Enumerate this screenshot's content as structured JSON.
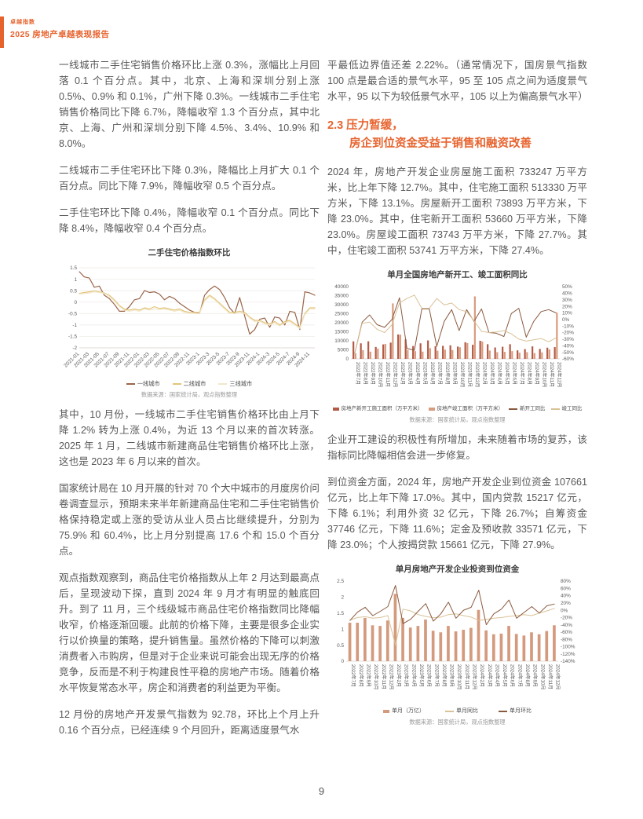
{
  "header": {
    "brand_small": "卓越指数",
    "brand_title": "2025 房地产卓越表现报告"
  },
  "page_number": "9",
  "left": {
    "p1": "一线城市二手住宅销售价格环比上涨 0.3%，涨幅比上月回落 0.1 个百分点。其中，北京、上海和深圳分别上涨 0.5%、0.9% 和 0.1%，广州下降 0.3%。一线城市二手住宅销售价格同比下降 6.7%，降幅收窄 1.3 个百分点，其中北京、上海、广州和深圳分别下降 4.5%、3.4%、10.9% 和 8.0%。",
    "p2": "二线城市二手住宅环比下降 0.3%，降幅比上月扩大 0.1 个百分点。同比下降 7.9%，降幅收窄 0.5 个百分点。",
    "p3": "二手住宅环比下降 0.4%，降幅收窄 0.1 个百分点。同比下降 8.4%，降幅收窄 0.4 个百分点。",
    "p4": "其中，10 月份，一线城市二手住宅销售价格环比由上月下降 1.2% 转为上涨 0.4%，为近 13 个月以来的首次转涨。2025 年 1 月，二线城市新建商品住宅销售价格环比上涨，这也是 2023 年 6 月以来的首次。",
    "p5": "国家统计局在 10 月开展的针对 70 个大中城市的月度房价问卷调查显示，预期未来半年新建商品住宅和二手住宅销售价格保持稳定或上涨的受访从业人员占比继续提升，分别为 75.9% 和 60.4%，比上月分别提高 17.6 个和 15.0 个百分点。",
    "p6": "观点指数观察到，商品住宅价格指数从上年 2 月达到最高点后，呈现波动下探，直到 2024 年 9 月才有明显的触底回升。到了 11 月，三个线级城市商品住宅价格指数同比降幅收窄，价格逐渐回暖。此前的价格下降，主要是很多企业实行以价换量的策略，提升销售量。虽然价格的下降可以刺激消费者入市购房，但是对于企业来说可能会出现无序的价格竞争，反而是不利于构建良性平稳的房地产市场。随着价格水平恢复常态水平，房企和消费者的利益更为平衡。",
    "p7": "12 月份的房地产开发景气指数为 92.78，环比上个月上升 0.16 个百分点，已经连续 9 个月回升，距离适度景气水"
  },
  "right": {
    "p1": "平最低边界值还差 2.22%。（通常情况下，国房景气指数 100 点是最合适的景气水平，95 至 105 点之间为适度景气水平，95 以下为较低景气水平，105 以上为偏高景气水平）",
    "heading_line1": "2.3 压力暂缓，",
    "heading_line2": "房企到位资金受益于销售和融资改善",
    "p2": "2024 年，房地产开发企业房屋施工面积 733247 万平方米，比上年下降 12.7%。其中，住宅施工面积 513330 万平方米，下降 13.1%。房屋新开工面积 73893 万平方米，下降 23.0%。其中，住宅新开工面积 53660 万平方米，下降 23.0%。房屋竣工面积 73743 万平方米，下降 27.7%。其中，住宅竣工面积 53741 万平方米，下降 27.4%。",
    "p3": "企业开工建设的积极性有所增加，未来随着市场的复苏，该指标同比降幅相信会进一步修复。",
    "p4": "到位资金方面，2024 年，房地产开发企业到位资金 107661 亿元，比上年下降 17.0%。其中，国内贷款 15217 亿元，下降 6.1%；利用外资 32 亿元，下降 26.7%；自筹资金 37746 亿元，下降 11.6%；定金及预收款 33571 亿元，下降 23.0%；个人按揭贷款 15661 亿元，下降 27.9%。"
  },
  "accent_color": "#e7632e",
  "chart_data": [
    {
      "type": "line",
      "title": "二手住宅价格指数环比",
      "source": "数据来源：国家统计局，观点指数整理",
      "ylim": [
        -2,
        1.5
      ],
      "yticks": [
        "1.5",
        "1",
        "0.5",
        "0",
        "-0.5",
        "-1",
        "-1.5",
        "-2"
      ],
      "legend_position": "bottom",
      "grid": true,
      "categories": [
        "2021-01",
        "2021-02",
        "2021-03",
        "2021-04",
        "2021-05",
        "2021-06",
        "2021-07",
        "2021-08",
        "2021-09",
        "2021-10",
        "2021-11",
        "2021-12",
        "2022-01",
        "2022-02",
        "2022-03",
        "2022-04",
        "2022-05",
        "2022-06",
        "2022-07",
        "2022-08",
        "2022-09",
        "2022-10",
        "2022-11",
        "2022-12",
        "2023-1",
        "2023-2",
        "2023-3",
        "2023-4",
        "2023-5",
        "2023-6",
        "2023-7",
        "2023-8",
        "2023-9",
        "2023-10",
        "2023-11",
        "2023-12",
        "2024-1",
        "2024-2",
        "2024-3",
        "2024-4",
        "2024-5",
        "2024-6",
        "2024-7",
        "2024-8",
        "2024-9",
        "2024-10",
        "2024-11",
        "2024-12"
      ],
      "series": [
        {
          "name": "一线城市",
          "type": "line",
          "axis": "left",
          "color": "#99654a",
          "values": [
            1.33,
            1.1,
            1.05,
            0.65,
            0.7,
            0.3,
            0.15,
            -0.1,
            -0.4,
            -0.4,
            -0.2,
            0.1,
            0.15,
            0.5,
            0.42,
            0.45,
            0.35,
            0.1,
            0.25,
            0.15,
            -0.05,
            -0.2,
            -0.35,
            -0.45,
            -0.5,
            0.3,
            0.55,
            0.7,
            0.55,
            0.2,
            -0.25,
            -0.5,
            0.2,
            -0.6,
            -1.4,
            -1.2,
            -0.75,
            -0.7,
            -1.1,
            -0.65,
            -0.7,
            -1.0,
            -0.4,
            -0.45,
            -1.2,
            0.45,
            0.4,
            0.3
          ]
        },
        {
          "name": "二线城市",
          "type": "line",
          "axis": "left",
          "color": "#e3c478",
          "values": [
            0.38,
            0.42,
            0.45,
            0.48,
            0.45,
            0.4,
            0.3,
            0.1,
            -0.15,
            -0.3,
            -0.35,
            -0.3,
            -0.35,
            -0.25,
            -0.3,
            -0.2,
            -0.28,
            -0.25,
            -0.3,
            -0.35,
            -0.3,
            -0.4,
            -0.45,
            -0.45,
            -0.45,
            0.1,
            0.3,
            0.15,
            -0.05,
            -0.25,
            -0.45,
            -0.45,
            -0.4,
            -0.45,
            -0.65,
            -0.8,
            -0.8,
            -0.9,
            -0.95,
            -0.85,
            -1.0,
            -0.85,
            -0.8,
            -0.95,
            -1.1,
            -0.5,
            -0.25,
            -0.25
          ]
        },
        {
          "name": "三线城市",
          "type": "line",
          "axis": "left",
          "color": "#f2e7cb",
          "values": [
            0.35,
            0.38,
            0.4,
            0.45,
            0.42,
            0.38,
            0.25,
            0.05,
            -0.2,
            -0.35,
            -0.4,
            -0.35,
            -0.4,
            -0.3,
            -0.35,
            -0.3,
            -0.33,
            -0.3,
            -0.35,
            -0.4,
            -0.35,
            -0.45,
            -0.5,
            -0.5,
            -0.5,
            0.05,
            0.25,
            0.1,
            -0.1,
            -0.3,
            -0.5,
            -0.5,
            -0.45,
            -0.5,
            -0.7,
            -0.85,
            -0.85,
            -0.95,
            -1.0,
            -0.9,
            -1.05,
            -0.9,
            -0.85,
            -1.0,
            -1.15,
            -0.55,
            -0.3,
            -0.3
          ]
        }
      ]
    },
    {
      "type": "bar",
      "title": "单月全国房地产新开工、竣工面积同比",
      "source": "数据来源：国家统计局，观点指数整理",
      "ylim_left": [
        0,
        40000
      ],
      "yticks_left": [
        "40000",
        "35000",
        "30000",
        "25000",
        "20000",
        "15000",
        "10000",
        "5000",
        "0"
      ],
      "ylim_right": [
        -60,
        50
      ],
      "yticks_right": [
        "50%",
        "40%",
        "30%",
        "20%",
        "10%",
        "0%",
        "-10%",
        "-20%",
        "-30%",
        "-40%",
        "-50%",
        "-60%"
      ],
      "legend_position": "bottom",
      "grid": false,
      "categories": [
        "2022年7月",
        "2022年8月",
        "2022年9月",
        "2022年10月",
        "2022年11月",
        "2022年12月",
        "2023年2月",
        "2023年3月",
        "2023年4月",
        "2023年5月",
        "2023年6月",
        "2023年7月",
        "2023年8月",
        "2023年9月",
        "2023年10月",
        "2023年11月",
        "2023年12月",
        "2024年2月",
        "2024年3月",
        "2024年4月",
        "2024年5月",
        "2024年6月",
        "2024年7月",
        "2024年8月",
        "2024年9月",
        "2024年10月",
        "2024年11月",
        "2024年12月"
      ],
      "series": [
        {
          "name": "房地产新开工施工面积（万平方米）",
          "type": "bar",
          "axis": "left",
          "color": "#b25a46",
          "values": [
            9700,
            8600,
            9700,
            6600,
            8000,
            9000,
            13500,
            10800,
            7100,
            8600,
            10200,
            7000,
            7200,
            7500,
            6800,
            9200,
            7800,
            10000,
            8100,
            6300,
            6700,
            8100,
            4700,
            5400,
            6900,
            5500,
            6200,
            6500
          ]
        },
        {
          "name": "房地产竣工面积（万平方米）",
          "type": "bar",
          "axis": "left",
          "color": "#d99b7d",
          "values": [
            3000,
            4800,
            4000,
            5700,
            8300,
            30700,
            13400,
            4900,
            4300,
            4000,
            5900,
            4500,
            5100,
            4900,
            6400,
            8700,
            34600,
            9600,
            4600,
            3700,
            3900,
            4300,
            3400,
            3700,
            3200,
            3600,
            5200,
            25500
          ]
        },
        {
          "name": "新开工同比",
          "type": "line",
          "axis": "right",
          "color": "#8a5a40",
          "values": [
            -52,
            -4,
            7,
            -8,
            -12,
            0,
            33,
            -44,
            -47,
            16,
            16,
            -41,
            -3,
            15,
            -17,
            15,
            -3,
            16,
            -20,
            -21,
            -26,
            9,
            17,
            -27,
            -3,
            12,
            15,
            10
          ]
        },
        {
          "name": "竣工同比",
          "type": "line",
          "axis": "right",
          "color": "#d9c298",
          "values": [
            -52,
            -6,
            -4,
            -15,
            -20,
            -8,
            25,
            32,
            37,
            17,
            17,
            32,
            22,
            25,
            15,
            12,
            -2,
            -18,
            -20,
            -19,
            -17,
            -22,
            -30,
            -33,
            -31,
            -29,
            -34,
            -28
          ]
        }
      ]
    },
    {
      "type": "bar",
      "title": "单月房地产开发企业投资到位资金",
      "source": "数据来源：国家统计局，观点指数整理",
      "ylim_left": [
        0,
        2.5
      ],
      "yticks_left": [
        "2.5",
        "2",
        "1.5",
        "1",
        "0.5",
        "0"
      ],
      "ylim_right": [
        -140,
        80
      ],
      "yticks_right": [
        "80%",
        "60%",
        "40%",
        "20%",
        "0%",
        "-20%",
        "-40%",
        "-60%",
        "-80%",
        "-100%",
        "-120%",
        "-140%"
      ],
      "legend_position": "bottom",
      "grid": false,
      "categories": [
        "2022年7月",
        "2022年8月",
        "2022年9月",
        "2022年10月",
        "2022年11月",
        "2022年12月",
        "2023年2月",
        "2023年3月",
        "2023年4月",
        "2023年5月",
        "2023年6月",
        "2023年7月",
        "2023年8月",
        "2023年9月",
        "2023年10月",
        "2023年11月",
        "2023年12月",
        "2024年2月",
        "2024年3月",
        "2024年4月",
        "2024年5月",
        "2024年6月",
        "2024年7月",
        "2024年8月",
        "2024年9月",
        "2024年10月",
        "2024年11月",
        "2024年12月"
      ],
      "series": [
        {
          "name": "单月（万亿）",
          "type": "bar",
          "axis": "left",
          "color": "#d49a7e",
          "values": [
            1.2,
            1.2,
            1.35,
            1.12,
            1.1,
            1.27,
            2.1,
            1.35,
            1.05,
            1.1,
            1.3,
            0.95,
            0.9,
            1.1,
            0.93,
            0.98,
            1.04,
            1.6,
            0.96,
            0.84,
            0.86,
            1.1,
            0.85,
            0.8,
            0.9,
            0.84,
            0.94,
            1.12
          ]
        },
        {
          "name": "单月同比",
          "type": "line",
          "axis": "right",
          "color": "#d9c298",
          "values": [
            -27,
            -20,
            -18,
            -22,
            -20,
            -15,
            -96,
            3,
            -2,
            -12,
            -17,
            -21,
            -19,
            -12,
            -10,
            -15,
            -19,
            -28,
            -25,
            -22,
            -20,
            -17,
            -15,
            -12,
            -15,
            -8,
            -2,
            5
          ]
        },
        {
          "name": "单月环比",
          "type": "line",
          "axis": "right",
          "color": "#8a5a40",
          "values": [
            -28,
            -5,
            8,
            -15,
            -3,
            10,
            68,
            -37,
            -25,
            -3,
            18,
            -30,
            -10,
            22,
            -22,
            0,
            8,
            55,
            -40,
            -10,
            3,
            28,
            -22,
            -6,
            10,
            -8,
            12,
            17
          ]
        }
      ]
    }
  ]
}
